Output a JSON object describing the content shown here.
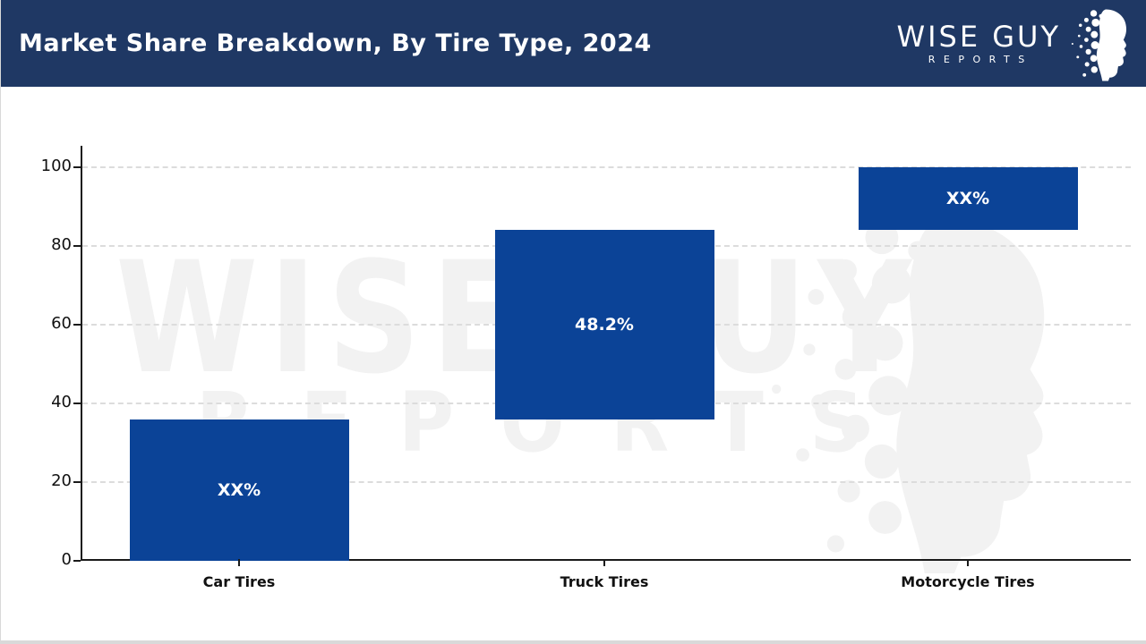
{
  "header": {
    "title": "Market Share Breakdown, By Tire Type, 2024",
    "logo_line1": "WISE GUY",
    "logo_line2": "REPORTS",
    "bg_color": "#1f3864"
  },
  "watermark": {
    "line1": "WISE GUY",
    "line2": "REPORTS",
    "color": "#f2f2f2"
  },
  "chart_data": {
    "type": "bar",
    "subtype": "floating-waterfall",
    "title": "Market Share Breakdown, By Tire Type, 2024",
    "categories": [
      "Car Tires",
      "Truck Tires",
      "Motorcycle Tires"
    ],
    "series": [
      {
        "name": "Market Share",
        "segments": [
          {
            "category": "Car Tires",
            "start": 0,
            "end": 36,
            "label": "XX%"
          },
          {
            "category": "Truck Tires",
            "start": 36,
            "end": 84.2,
            "label": "48.2%"
          },
          {
            "category": "Motorcycle Tires",
            "start": 84.2,
            "end": 100,
            "label": "XX%"
          }
        ]
      }
    ],
    "bar_color": "#0b4397",
    "ylim": [
      0,
      100
    ],
    "yticks": [
      0,
      20,
      40,
      60,
      80,
      100
    ],
    "xlabel": "",
    "ylabel": "",
    "grid": "dashed-horizontal-gray",
    "gridline_color": "#dcdcdc",
    "axis_color": "#1a1a1a",
    "legend": "none"
  }
}
